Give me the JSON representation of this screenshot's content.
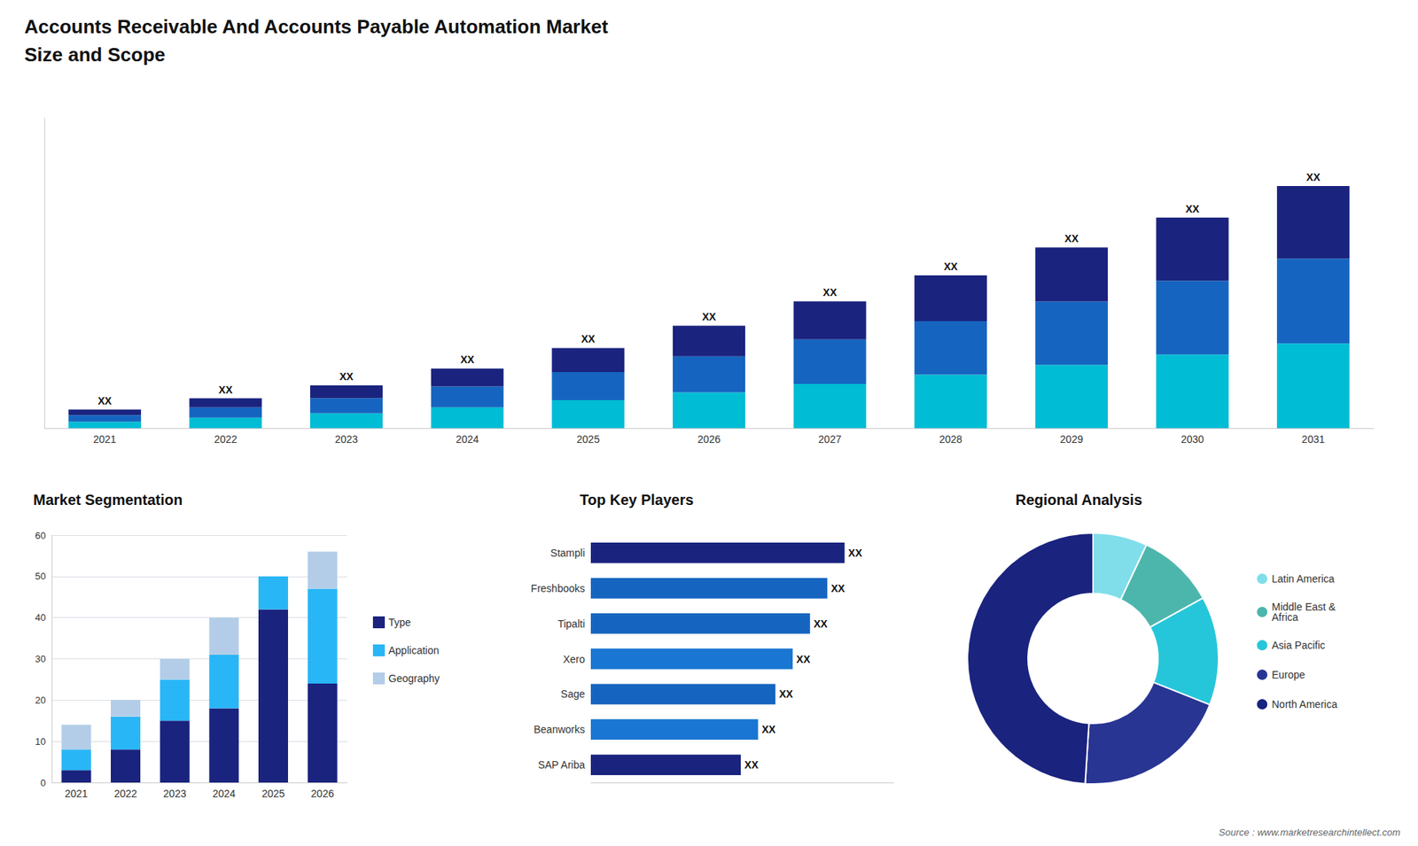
{
  "chart_data": [
    {
      "type": "bar",
      "title": "Accounts Receivable And Accounts Payable Automation Market",
      "subtitle": "Size and Scope",
      "categories": [
        "2021",
        "2022",
        "2023",
        "2024",
        "2025",
        "2026",
        "2027",
        "2028",
        "2029",
        "2030",
        "2031"
      ],
      "stacked": true,
      "series": [
        {
          "color": "#00bcd4",
          "values": [
            0.35,
            0.56,
            0.805,
            1.12,
            1.505,
            1.925,
            2.38,
            2.87,
            3.395,
            3.955,
            4.55
          ]
        },
        {
          "color": "#1565c0",
          "values": [
            0.35,
            0.56,
            0.805,
            1.12,
            1.505,
            1.925,
            2.38,
            2.87,
            3.395,
            3.955,
            4.55
          ]
        },
        {
          "color": "#1a237e",
          "values": [
            0.3,
            0.48,
            0.69,
            0.96,
            1.29,
            1.65,
            2.04,
            2.46,
            2.91,
            3.39,
            3.9
          ]
        }
      ],
      "ylim": [
        0,
        16.64
      ],
      "grid": false,
      "tick_labels": "x",
      "annotations": [
        {
          "x": "2021",
          "text": "XX"
        },
        {
          "x": "2022",
          "text": "XX"
        },
        {
          "x": "2023",
          "text": "XX"
        },
        {
          "x": "2024",
          "text": "XX"
        },
        {
          "x": "2025",
          "text": "XX"
        },
        {
          "x": "2026",
          "text": "XX"
        },
        {
          "x": "2027",
          "text": "XX"
        },
        {
          "x": "2028",
          "text": "XX"
        },
        {
          "x": "2029",
          "text": "XX"
        },
        {
          "x": "2030",
          "text": "XX"
        },
        {
          "x": "2031",
          "text": "XX"
        }
      ]
    },
    {
      "type": "bar",
      "title": "Market Segmentation",
      "categories": [
        "2021",
        "2022",
        "2023",
        "2024",
        "2025",
        "2026"
      ],
      "stacked": true,
      "series": [
        {
          "name": "Type",
          "color": "#1a237e",
          "values": [
            3,
            8,
            15,
            18,
            42,
            24
          ]
        },
        {
          "name": "Application",
          "color": "#29b6f6",
          "values": [
            5,
            8,
            10,
            13,
            8,
            23
          ]
        },
        {
          "name": "Geography",
          "color": "#b3cde8",
          "values": [
            6,
            4,
            5,
            9,
            0,
            9
          ]
        }
      ],
      "ylim": [
        0,
        60
      ],
      "yticks": [
        0,
        10,
        20,
        30,
        40,
        50,
        60
      ],
      "grid": true,
      "legend": "right"
    },
    {
      "type": "bar",
      "orientation": "horizontal",
      "title": "Top Key Players",
      "categories": [
        "Stampli",
        "Freshbooks",
        "Tipalti",
        "Xero",
        "Sage",
        "Beanworks",
        "SAP Ariba"
      ],
      "values": [
        88,
        82,
        76,
        70,
        64,
        58,
        52
      ],
      "colors": [
        "#1a237e",
        "#1565c0",
        "#1565c0",
        "#1976d2",
        "#1565c0",
        "#1976d2",
        "#1a237e"
      ],
      "xlim": [
        0,
        105
      ],
      "grid": false,
      "tick_labels": "y",
      "annotations": [
        {
          "y": "Stampli",
          "text": "XX"
        },
        {
          "y": "Freshbooks",
          "text": "XX"
        },
        {
          "y": "Tipalti",
          "text": "XX"
        },
        {
          "y": "Xero",
          "text": "XX"
        },
        {
          "y": "Sage",
          "text": "XX"
        },
        {
          "y": "Beanworks",
          "text": "XX"
        },
        {
          "y": "SAP Ariba",
          "text": "XX"
        }
      ]
    },
    {
      "type": "donut",
      "title": "Regional Analysis",
      "categories": [
        "Latin America",
        "Middle East &\nAfrica",
        "Asia Pacific",
        "Europe",
        "North America"
      ],
      "values": [
        7,
        10,
        14,
        20,
        49
      ],
      "colors": [
        "#80deea",
        "#4db6ac",
        "#26c6da",
        "#283593",
        "#1a237e"
      ],
      "legend": "right",
      "annotations": [
        {
          "text": "Source : www.marketresearchintellect.com"
        }
      ]
    }
  ]
}
